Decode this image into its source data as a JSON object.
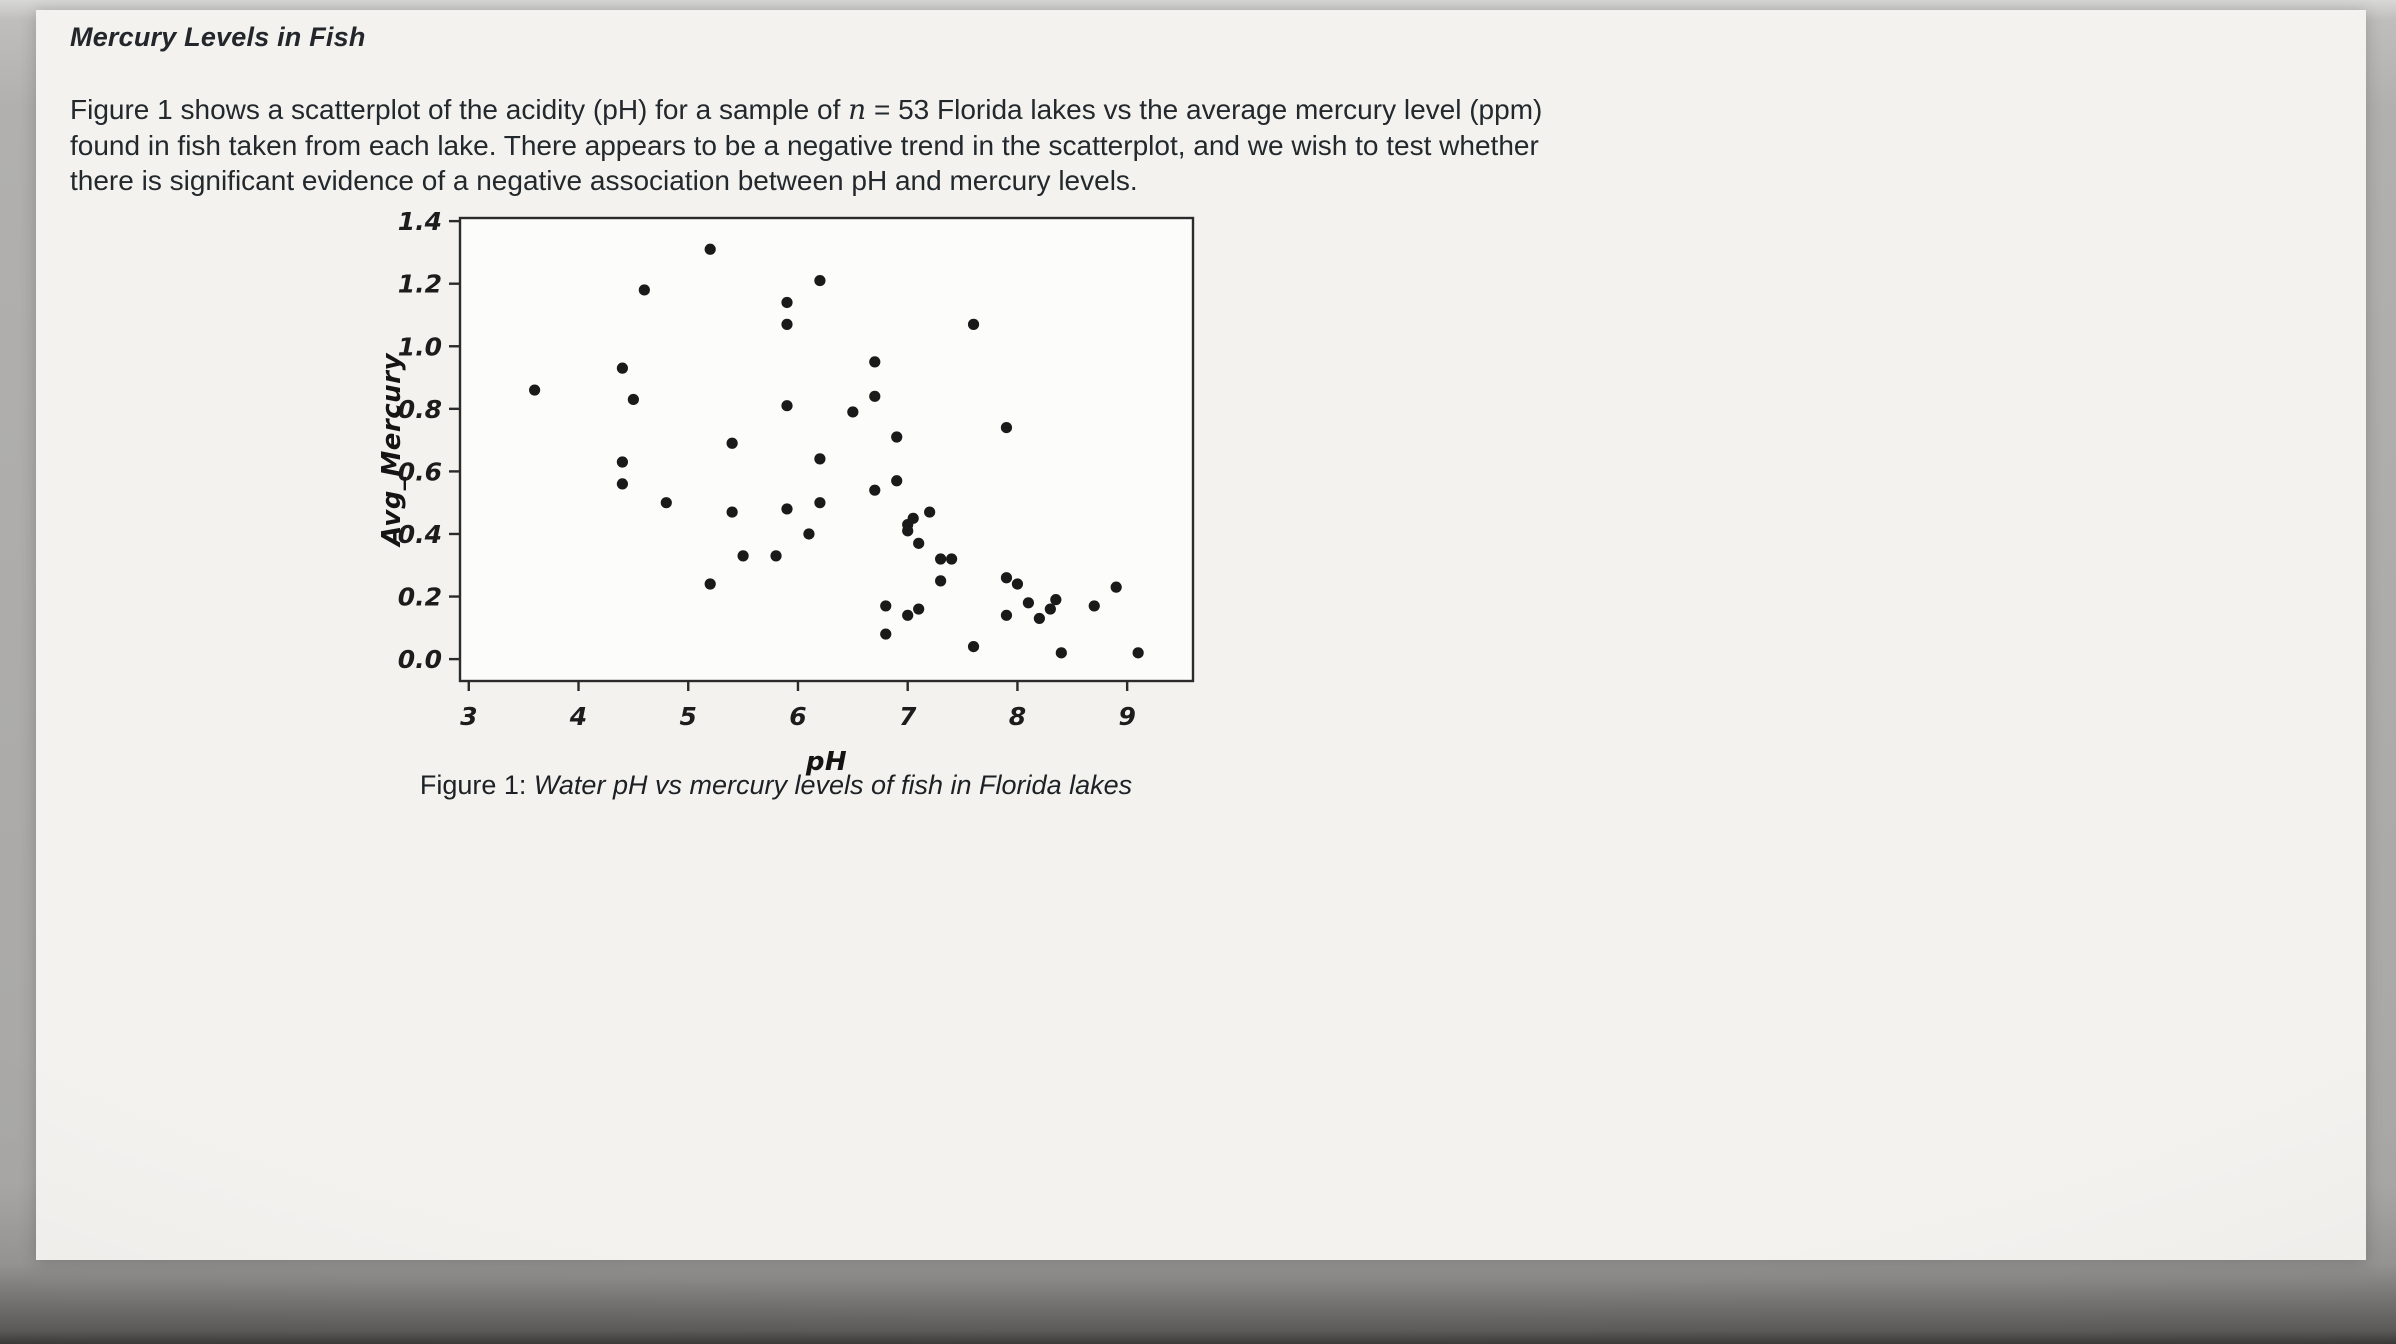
{
  "doc": {
    "title": "Mercury Levels in Fish",
    "intro": {
      "line1_pre": "Figure 1 shows a scatterplot of the acidity (pH) for a sample of ",
      "line1_var": "n",
      "line1_post": " = 53 Florida lakes vs the average mercury level (ppm) found in fish taken from each lake. There appears to be a negative trend in the scatterplot, and we wish to test whether there is significant evidence of a negative association between pH and mercury levels."
    },
    "caption_prefix": "Figure 1: ",
    "caption_text": "Water pH vs mercury levels of fish in Florida lakes"
  },
  "chart_data": {
    "type": "scatter",
    "title": "",
    "xlabel": "pH",
    "ylabel": "Avg_Mercury",
    "n": 53,
    "xlim": [
      2.92,
      9.6
    ],
    "ylim": [
      -0.07,
      1.41
    ],
    "grid": false,
    "x_ticks": [
      {
        "value": 3,
        "label": "3"
      },
      {
        "value": 4,
        "label": "4"
      },
      {
        "value": 5,
        "label": "5"
      },
      {
        "value": 6,
        "label": "6"
      },
      {
        "value": 7,
        "label": "7"
      },
      {
        "value": 8,
        "label": "8"
      },
      {
        "value": 9,
        "label": "9"
      }
    ],
    "y_ticks": [
      {
        "value": 1.4,
        "label": "1.4"
      },
      {
        "value": 1.2,
        "label": "1.2"
      },
      {
        "value": 1.0,
        "label": "1.0"
      },
      {
        "value": 0.8,
        "label": "0.8"
      },
      {
        "value": 0.6,
        "label": "0.6"
      },
      {
        "value": 0.4,
        "label": "0.4"
      },
      {
        "value": 0.2,
        "label": "0.2"
      },
      {
        "value": 0.0,
        "label": "0.0"
      }
    ],
    "points": [
      [
        3.6,
        0.86
      ],
      [
        4.4,
        0.93
      ],
      [
        4.4,
        0.63
      ],
      [
        4.4,
        0.56
      ],
      [
        4.5,
        0.83
      ],
      [
        4.6,
        1.18
      ],
      [
        4.8,
        0.5
      ],
      [
        5.2,
        1.31
      ],
      [
        5.2,
        0.24
      ],
      [
        5.4,
        0.69
      ],
      [
        5.4,
        0.47
      ],
      [
        5.5,
        0.33
      ],
      [
        5.8,
        0.33
      ],
      [
        5.9,
        1.14
      ],
      [
        5.9,
        1.07
      ],
      [
        5.9,
        0.81
      ],
      [
        5.9,
        0.48
      ],
      [
        6.1,
        0.4
      ],
      [
        6.2,
        1.21
      ],
      [
        6.2,
        0.64
      ],
      [
        6.2,
        0.5
      ],
      [
        6.5,
        0.79
      ],
      [
        6.7,
        0.84
      ],
      [
        6.7,
        0.95
      ],
      [
        6.7,
        0.54
      ],
      [
        6.8,
        0.17
      ],
      [
        6.8,
        0.08
      ],
      [
        6.9,
        0.71
      ],
      [
        6.9,
        0.57
      ],
      [
        7.0,
        0.43
      ],
      [
        7.0,
        0.41
      ],
      [
        7.05,
        0.45
      ],
      [
        7.1,
        0.37
      ],
      [
        7.0,
        0.14
      ],
      [
        7.1,
        0.16
      ],
      [
        7.2,
        0.47
      ],
      [
        7.3,
        0.32
      ],
      [
        7.4,
        0.32
      ],
      [
        7.3,
        0.25
      ],
      [
        7.6,
        1.07
      ],
      [
        7.6,
        0.04
      ],
      [
        7.9,
        0.74
      ],
      [
        7.9,
        0.26
      ],
      [
        8.0,
        0.24
      ],
      [
        7.9,
        0.14
      ],
      [
        8.1,
        0.18
      ],
      [
        8.2,
        0.13
      ],
      [
        8.3,
        0.16
      ],
      [
        8.35,
        0.19
      ],
      [
        8.4,
        0.02
      ],
      [
        8.7,
        0.17
      ],
      [
        8.9,
        0.23
      ],
      [
        9.1,
        0.02
      ]
    ],
    "colors": {
      "point": "#1a1a1a",
      "axis": "#2b2b2b",
      "plot_background": "#fcfcfb"
    }
  }
}
